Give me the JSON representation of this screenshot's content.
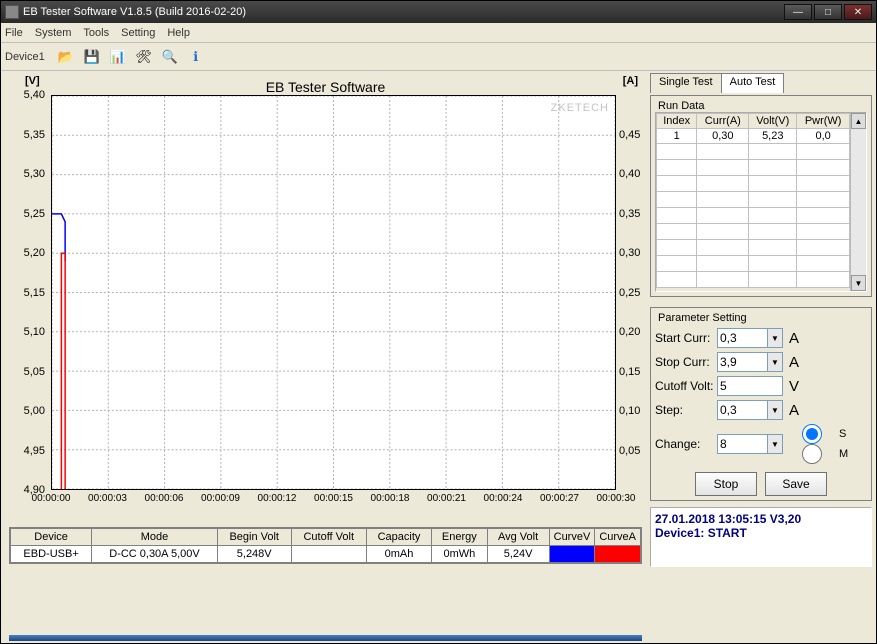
{
  "window": {
    "title": "EB Tester Software V1.8.5 (Build 2016-02-20)"
  },
  "menu": {
    "file": "File",
    "system": "System",
    "tools": "Tools",
    "setting": "Setting",
    "help": "Help"
  },
  "toolbar": {
    "device_label": "Device1",
    "icons": [
      "open",
      "save",
      "chart",
      "tools",
      "zoom",
      "info"
    ]
  },
  "chart": {
    "title": "EB Tester Software",
    "watermark": "ZKETECH",
    "y_left_label": "[V]",
    "y_right_label": "[A]",
    "y_left": {
      "min": 4.9,
      "max": 5.4,
      "step": 0.05,
      "ticks": [
        "5,40",
        "5,35",
        "5,30",
        "5,25",
        "5,20",
        "5,15",
        "5,10",
        "5,05",
        "5,00",
        "4,95",
        "4,90"
      ]
    },
    "y_right": {
      "min": 0,
      "max": 0.5,
      "step": 0.05,
      "ticks": [
        "",
        "0,45",
        "0,40",
        "0,35",
        "0,30",
        "0,25",
        "0,20",
        "0,15",
        "0,10",
        "0,05",
        ""
      ]
    },
    "x": {
      "ticks": [
        "00:00:00",
        "00:00:03",
        "00:00:06",
        "00:00:09",
        "00:00:12",
        "00:00:15",
        "00:00:18",
        "00:00:21",
        "00:00:24",
        "00:00:27",
        "00:00:30"
      ]
    },
    "series_v": {
      "color": "#0000ff",
      "points": [
        [
          0,
          5.25
        ],
        [
          0.5,
          5.25
        ],
        [
          0.7,
          5.24
        ],
        [
          0.7,
          5.19
        ]
      ]
    },
    "series_a": {
      "color": "#ff0000",
      "points": [
        [
          0.5,
          0.0
        ],
        [
          0.5,
          0.3
        ],
        [
          0.7,
          0.3
        ],
        [
          0.7,
          0.0
        ]
      ]
    },
    "grid_color": "#b0b0b0",
    "background": "#ffffff"
  },
  "bottom_table": {
    "headers": [
      "Device",
      "Mode",
      "Begin Volt",
      "Cutoff Volt",
      "Capacity",
      "Energy",
      "Avg Volt",
      "CurveV",
      "CurveA"
    ],
    "row": {
      "device": "EBD-USB+",
      "mode": "D-CC  0,30A  5,00V",
      "begin_volt": "5,248V",
      "cutoff_volt": "",
      "capacity": "0mAh",
      "energy": "0mWh",
      "avg_volt": "5,24V"
    }
  },
  "tabs": {
    "single": "Single Test",
    "auto": "Auto Test",
    "active": "auto"
  },
  "run_data": {
    "title": "Run Data",
    "headers": [
      "Index",
      "Curr(A)",
      "Volt(V)",
      "Pwr(W)"
    ],
    "rows": [
      [
        "1",
        "0,30",
        "5,23",
        "0,0"
      ]
    ],
    "empty_rows": 9
  },
  "param": {
    "title": "Parameter Setting",
    "start_curr": {
      "label": "Start Curr:",
      "value": "0,3",
      "unit": "A"
    },
    "stop_curr": {
      "label": "Stop Curr:",
      "value": "3,9",
      "unit": "A"
    },
    "cutoff_volt": {
      "label": "Cutoff Volt:",
      "value": "5",
      "unit": "V"
    },
    "step": {
      "label": "Step:",
      "value": "0,3",
      "unit": "A"
    },
    "change": {
      "label": "Change:",
      "value": "8",
      "radio_s": "S",
      "radio_m": "M"
    },
    "stop_btn": "Stop",
    "save_btn": "Save"
  },
  "log": {
    "line1": "27.01.2018 13:05:15  V3,20",
    "line2": "Device1: START"
  }
}
